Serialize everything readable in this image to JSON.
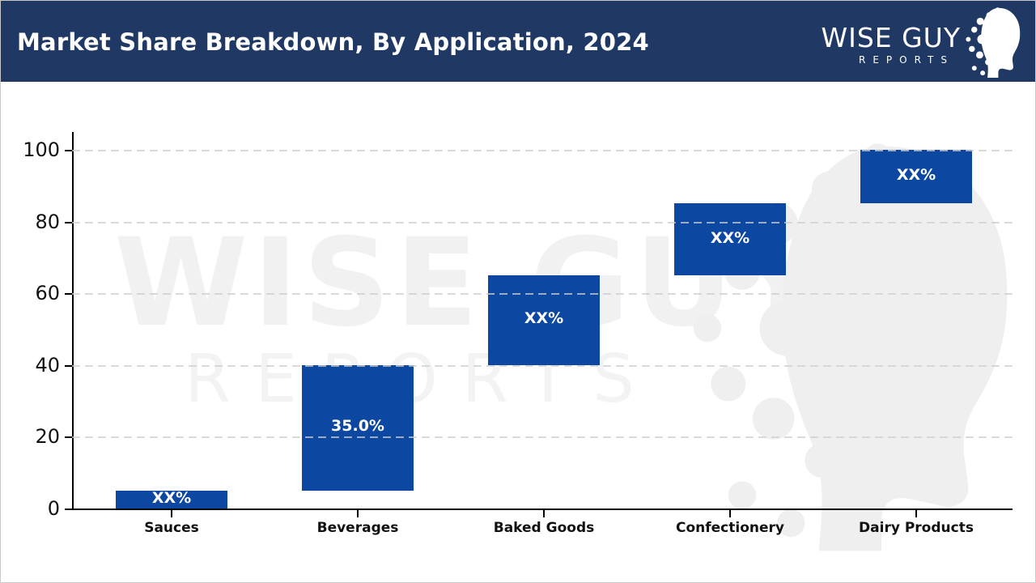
{
  "header": {
    "title": "Market Share Breakdown, By Application, 2024",
    "bg_color": "#1f3864",
    "logo": {
      "line1": "WISE GUY",
      "line2": "REPORTS"
    }
  },
  "watermark": {
    "line1": "WISE GUY",
    "line2": "REPORTS"
  },
  "chart_data": {
    "type": "bar",
    "subtype": "floating-waterfall-segments",
    "title": "Market Share Breakdown, By Application, 2024",
    "categories": [
      "Sauces",
      "Beverages",
      "Baked Goods",
      "Confectionery",
      "Dairy Products"
    ],
    "segments": [
      {
        "category": "Sauces",
        "start": 0,
        "end": 5,
        "label": "XX%"
      },
      {
        "category": "Beverages",
        "start": 5,
        "end": 40,
        "label": "35.0%"
      },
      {
        "category": "Baked Goods",
        "start": 40,
        "end": 65,
        "label": "XX%"
      },
      {
        "category": "Confectionery",
        "start": 65,
        "end": 85,
        "label": "XX%"
      },
      {
        "category": "Dairy Products",
        "start": 85,
        "end": 100,
        "label": "XX%"
      }
    ],
    "xlabel": "",
    "ylabel": "",
    "ylim": [
      0,
      105
    ],
    "yticks": [
      0,
      20,
      40,
      60,
      80,
      100
    ],
    "grid": "dashed-horizontal",
    "legend": null,
    "bar_color": "#0c47a1",
    "bar_label_color": "#ffffff",
    "axis_color": "#000000",
    "header_color": "#1f3864"
  }
}
